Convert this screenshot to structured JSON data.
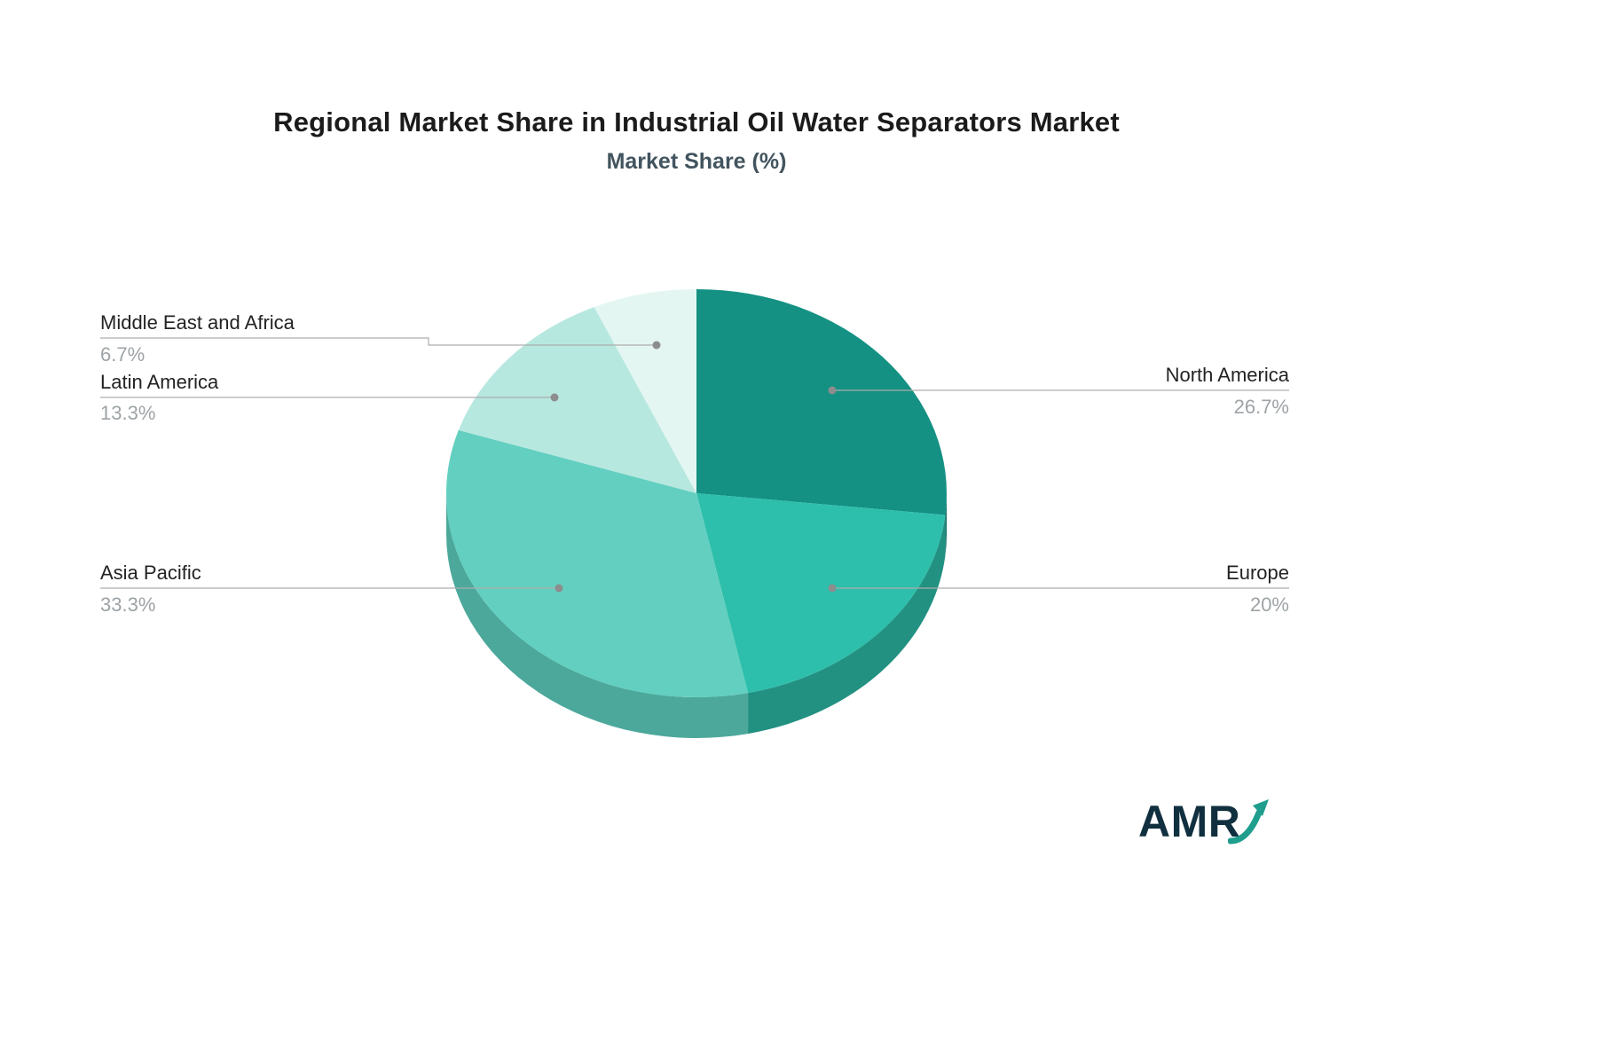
{
  "chart_data": {
    "type": "pie",
    "title": "Regional Market Share in Industrial Oil Water Separators Market",
    "subtitle": "Market Share (%)",
    "unit": "%",
    "legend_position": "none",
    "start_angle_deg": 0,
    "direction": "clockwise",
    "style": "3d-pie",
    "slices": [
      {
        "label": "North America",
        "value": 26.7,
        "display": "26.7%",
        "color": "#149183",
        "side_color": "#0f6f65"
      },
      {
        "label": "Europe",
        "value": 20,
        "display": "20%",
        "color": "#2dbfab",
        "side_color": "#229182"
      },
      {
        "label": "Asia Pacific",
        "value": 33.3,
        "display": "33.3%",
        "color": "#63cfc0",
        "side_color": "#4ca89b"
      },
      {
        "label": "Latin America",
        "value": 13.3,
        "display": "13.3%",
        "color": "#b7e8e0",
        "side_color": "#92bcb5"
      },
      {
        "label": "Middle East and Africa",
        "value": 6.7,
        "display": "6.7%",
        "color": "#e4f6f2",
        "side_color": "#bccfca"
      }
    ],
    "leader_line_color": "#adadad",
    "leader_dot_color": "#8d8d8d"
  },
  "branding": {
    "logo_text": "AMR",
    "logo_color": "#11303f",
    "arrow_color": "#1f9e8e"
  }
}
